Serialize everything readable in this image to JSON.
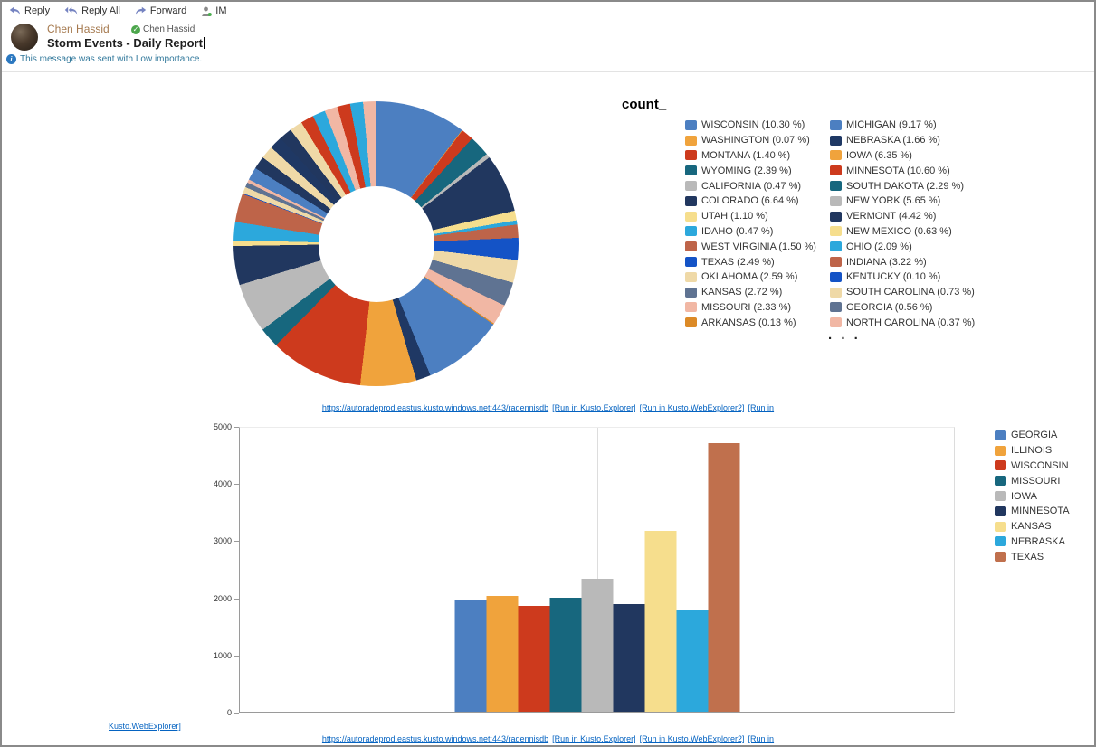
{
  "toolbar": {
    "reply": "Reply",
    "reply_all": "Reply All",
    "forward": "Forward",
    "im": "IM"
  },
  "message": {
    "sender": "Chen Hassid",
    "presence_name": "Chen Hassid",
    "subject": "Storm Events - Daily Report",
    "importance_note": "This message was sent with Low importance."
  },
  "links": {
    "url": "https://autoradeprod.eastus.kusto.windows.net:443/radennisdb",
    "run_explorer": "[Run in Kusto.Explorer]",
    "run_webexplorer2": "[Run in Kusto.WebExplorer2]",
    "run_partial": "[Run in",
    "wrapped_continuation": "Kusto.WebExplorer]"
  },
  "chart_data": [
    {
      "type": "pie",
      "subtype": "donut",
      "title": "count_",
      "legend_position": "right",
      "legend_overflow": ". . .",
      "other_pct": 17.56,
      "slices": [
        {
          "label": "WISCONSIN",
          "pct": 10.3,
          "color": "#4C7FC1"
        },
        {
          "label": "WASHINGTON",
          "pct": 0.07,
          "color": "#F0A33C"
        },
        {
          "label": "MONTANA",
          "pct": 1.4,
          "color": "#CD3A1D"
        },
        {
          "label": "WYOMING",
          "pct": 2.39,
          "color": "#17677E"
        },
        {
          "label": "CALIFORNIA",
          "pct": 0.47,
          "color": "#B9B9B9"
        },
        {
          "label": "COLORADO",
          "pct": 6.64,
          "color": "#21375F"
        },
        {
          "label": "UTAH",
          "pct": 1.1,
          "color": "#F6DE8D"
        },
        {
          "label": "IDAHO",
          "pct": 0.47,
          "color": "#2CA8DC"
        },
        {
          "label": "WEST VIRGINIA",
          "pct": 1.5,
          "color": "#BE6449"
        },
        {
          "label": "TEXAS",
          "pct": 2.49,
          "color": "#1453C6"
        },
        {
          "label": "OKLAHOMA",
          "pct": 2.59,
          "color": "#EFD9A7"
        },
        {
          "label": "KANSAS",
          "pct": 2.72,
          "color": "#5F7392"
        },
        {
          "label": "MISSOURI",
          "pct": 2.33,
          "color": "#F1B7A4"
        },
        {
          "label": "ARKANSAS",
          "pct": 0.13,
          "color": "#DC8A27"
        },
        {
          "label": "MICHIGAN",
          "pct": 9.17,
          "color": "#4C7FC1"
        },
        {
          "label": "NEBRASKA",
          "pct": 1.66,
          "color": "#1F3864"
        },
        {
          "label": "IOWA",
          "pct": 6.35,
          "color": "#F0A33C"
        },
        {
          "label": "MINNESOTA",
          "pct": 10.6,
          "color": "#CD3A1D"
        },
        {
          "label": "SOUTH DAKOTA",
          "pct": 2.29,
          "color": "#17677E"
        },
        {
          "label": "NEW YORK",
          "pct": 5.65,
          "color": "#B9B9B9"
        },
        {
          "label": "VERMONT",
          "pct": 4.42,
          "color": "#21375F"
        },
        {
          "label": "NEW MEXICO",
          "pct": 0.63,
          "color": "#F6DE8D"
        },
        {
          "label": "OHIO",
          "pct": 2.09,
          "color": "#2CA8DC"
        },
        {
          "label": "INDIANA",
          "pct": 3.22,
          "color": "#BE6449"
        },
        {
          "label": "KENTUCKY",
          "pct": 0.1,
          "color": "#1453C6"
        },
        {
          "label": "SOUTH CAROLINA",
          "pct": 0.73,
          "color": "#EFD9A7"
        },
        {
          "label": "GEORGIA",
          "pct": 0.56,
          "color": "#5F7392"
        },
        {
          "label": "NORTH CAROLINA",
          "pct": 0.37,
          "color": "#F1B7A4"
        }
      ]
    },
    {
      "type": "bar",
      "categories": [
        "GEORGIA",
        "ILLINOIS",
        "WISCONSIN",
        "MISSOURI",
        "IOWA",
        "MINNESOTA",
        "KANSAS",
        "NEBRASKA",
        "TEXAS"
      ],
      "values": [
        1970,
        2020,
        1850,
        2000,
        2330,
        1880,
        3160,
        1770,
        4700
      ],
      "colors": [
        "#4C7FC1",
        "#F0A33C",
        "#CD3A1D",
        "#17677E",
        "#B9B9B9",
        "#21375F",
        "#F6DE8D",
        "#2CA8DC",
        "#C0704D"
      ],
      "ylim": [
        0,
        5000
      ],
      "yticks": [
        0,
        1000,
        2000,
        3000,
        4000,
        5000
      ],
      "legend_position": "right",
      "grid": "center-vertical"
    }
  ]
}
